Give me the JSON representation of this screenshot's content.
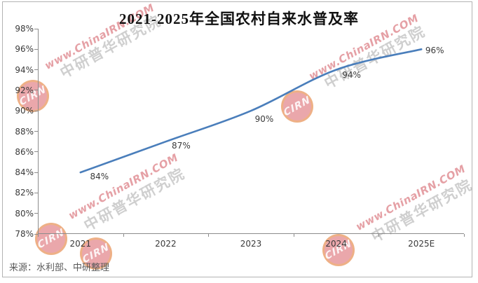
{
  "title": "2021-2025年全国农村自来水普及率",
  "source_note": "来源：水利部、中研整理",
  "watermark": {
    "logo_text": "CIRN",
    "url_text": "www.ChinaIRN.COM",
    "org_text": "中研普华研究院"
  },
  "chart_data": {
    "type": "line",
    "title": "2021-2025年全国农村自来水普及率",
    "categories": [
      "2021",
      "2022",
      "2023",
      "2024",
      "2025E"
    ],
    "values": [
      84,
      87,
      90,
      94,
      96
    ],
    "data_labels": [
      "84%",
      "87%",
      "90%",
      "94%",
      "96%"
    ],
    "y_tick_labels": [
      "98%",
      "96%",
      "94%",
      "92%",
      "90%",
      "88%",
      "86%",
      "84%",
      "82%",
      "80%",
      "78%"
    ],
    "ylim": [
      78,
      98
    ],
    "y_tick_step": 2,
    "ylabel": "",
    "xlabel": "",
    "grid": false,
    "legend": "none",
    "smooth_line": true,
    "line_color": "#4a7ebb",
    "axis_color": "#8c8c8c"
  }
}
